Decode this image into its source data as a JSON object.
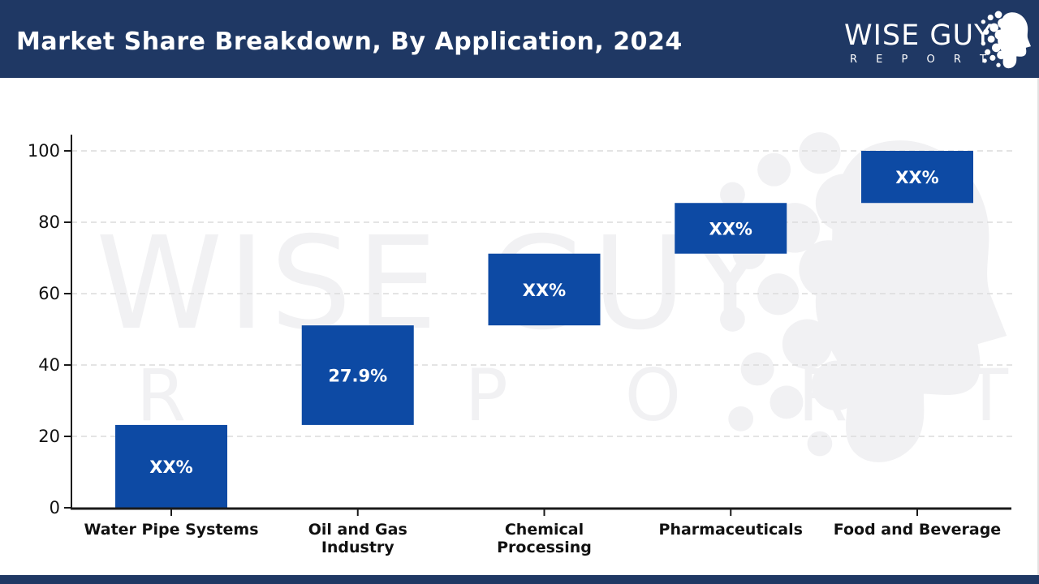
{
  "header": {
    "title": "Market Share Breakdown, By Application, 2024",
    "logo": {
      "line1": "WISE GUY",
      "line2": "R E P O R T S"
    },
    "bg_color": "#1f3864",
    "text_color": "#ffffff"
  },
  "watermark": {
    "line1": "WISE GUY",
    "line2": "R E P O R T S",
    "color": "#f1f1f3"
  },
  "footer": {
    "bg_color": "#1f3864"
  },
  "chart_data": {
    "type": "bar",
    "subtype": "waterfall-floating-bars",
    "title": "Market Share Breakdown, By Application, 2024",
    "xlabel": "",
    "ylabel": "",
    "ylim": [
      0,
      105
    ],
    "y_ticks": [
      0,
      20,
      40,
      60,
      80,
      100
    ],
    "grid": "horizontal-dashed",
    "legend": "none",
    "categories": [
      "Water Pipe Systems",
      "Oil and Gas Industry",
      "Chemical Processing",
      "Pharmaceuticals",
      "Food and Beverage"
    ],
    "segments": [
      {
        "category_lines": [
          "Water Pipe Systems"
        ],
        "start": 0,
        "end": 23.2,
        "value": 23.2,
        "label": "XX%"
      },
      {
        "category_lines": [
          "Oil and Gas",
          "Industry"
        ],
        "start": 23.2,
        "end": 51.1,
        "value": 27.9,
        "label": "27.9%"
      },
      {
        "category_lines": [
          "Chemical",
          "Processing"
        ],
        "start": 51.1,
        "end": 71.2,
        "value": 20.1,
        "label": "XX%"
      },
      {
        "category_lines": [
          "Pharmaceuticals"
        ],
        "start": 71.2,
        "end": 85.4,
        "value": 14.2,
        "label": "XX%"
      },
      {
        "category_lines": [
          "Food and Beverage"
        ],
        "start": 85.4,
        "end": 100,
        "value": 14.6,
        "label": "XX%"
      }
    ],
    "bar_color": "#0d4aa4",
    "bar_label_color": "#ffffff",
    "gridline_color": "#dcdcdc",
    "axis_color": "#1a1a1a",
    "tick_label_color": "#111111"
  }
}
